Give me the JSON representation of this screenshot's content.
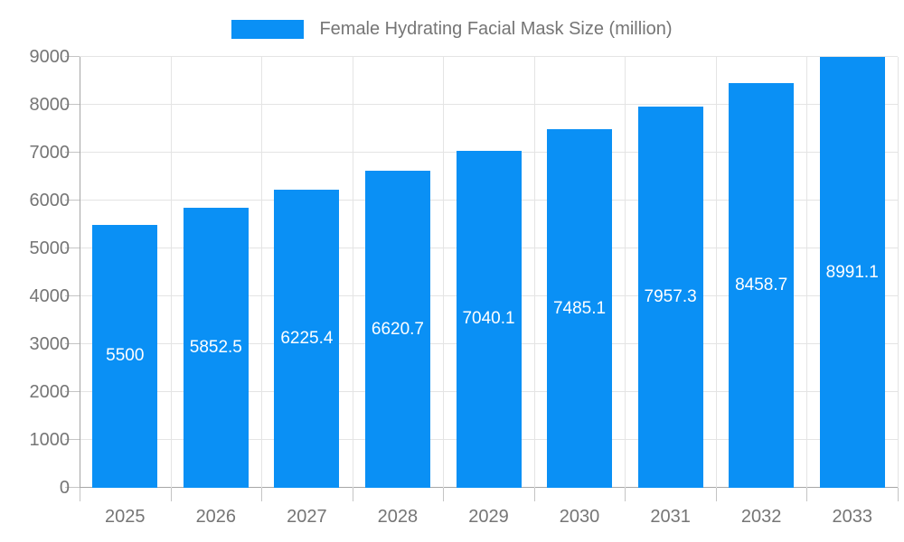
{
  "legend": {
    "label": "Female Hydrating Facial Mask Size (million)"
  },
  "chart_data": {
    "type": "bar",
    "title": "Female Hydrating Facial Mask Size (million)",
    "categories": [
      "2025",
      "2026",
      "2027",
      "2028",
      "2029",
      "2030",
      "2031",
      "2032",
      "2033"
    ],
    "values": [
      5500,
      5852.5,
      6225.4,
      6620.7,
      7040.1,
      7485.1,
      7957.3,
      8458.7,
      8991.1
    ],
    "bar_labels": [
      "5500",
      "5852.5",
      "6225.4",
      "6620.7",
      "7040.1",
      "7485.1",
      "7957.3",
      "8458.7",
      "8991.1"
    ],
    "y_ticks": [
      "0",
      "1000",
      "2000",
      "3000",
      "4000",
      "5000",
      "6000",
      "7000",
      "8000",
      "9000"
    ],
    "y_tick_values": [
      0,
      1000,
      2000,
      3000,
      4000,
      5000,
      6000,
      7000,
      8000,
      9000
    ],
    "ylim": [
      0,
      9000
    ],
    "xlabel": "",
    "ylabel": "",
    "grid": true,
    "legend_position": "top-center",
    "colors": {
      "bar": "#0a90f5",
      "grid": "#e4e4e4",
      "axis": "#a6a6a6",
      "tick": "#c4c4c4",
      "text": "#757575",
      "value_label": "#ffffff"
    }
  }
}
